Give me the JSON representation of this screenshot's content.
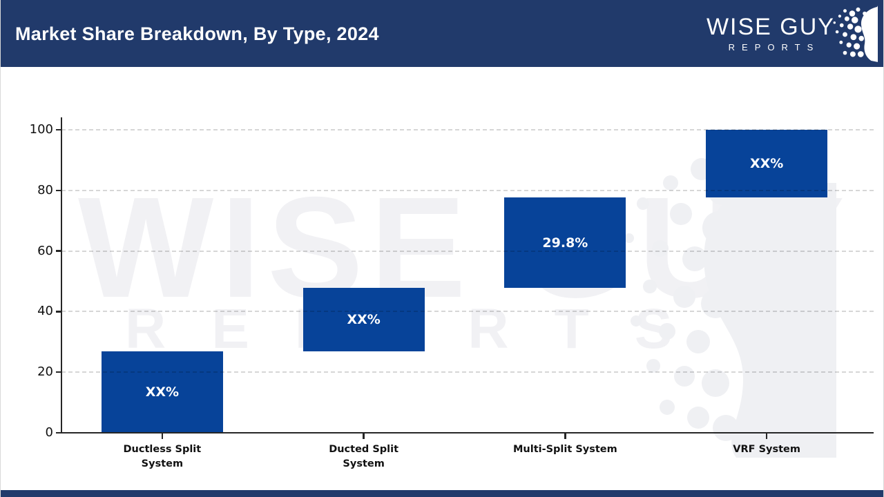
{
  "header": {
    "title": "Market Share Breakdown, By Type, 2024",
    "bg_color": "#213a6b",
    "logo": {
      "line1": "WISE GUY",
      "line2": "REPORTS"
    }
  },
  "watermark": {
    "line1": "WISE GUY",
    "line2": "REPORTS"
  },
  "chart_data": {
    "type": "bar",
    "subtype": "waterfall",
    "title": "Market Share Breakdown, By Type, 2024",
    "categories": [
      "Ductless Split System",
      "Ducted Split System",
      "Multi-Split System",
      "VRF System"
    ],
    "category_lines": [
      [
        "Ductless Split",
        "System"
      ],
      [
        "Ducted Split",
        "System"
      ],
      [
        "Multi-Split System"
      ],
      [
        "VRF System"
      ]
    ],
    "segments": [
      {
        "category": "Ductless Split System",
        "start": 0,
        "end": 26.9,
        "value": 26.9,
        "label": "XX%"
      },
      {
        "category": "Ducted Split System",
        "start": 26.9,
        "end": 47.8,
        "value": 20.9,
        "label": "XX%"
      },
      {
        "category": "Multi-Split System",
        "start": 47.8,
        "end": 77.6,
        "value": 29.8,
        "label": "29.8%"
      },
      {
        "category": "VRF System",
        "start": 77.6,
        "end": 100,
        "value": 22.4,
        "label": "XX%"
      }
    ],
    "yticks": [
      0,
      20,
      40,
      60,
      80,
      100
    ],
    "ylim": [
      0,
      100
    ],
    "xlabel": "",
    "ylabel": "",
    "bar_color": "#074399",
    "grid": "dashed horizontal",
    "legend": "none"
  },
  "footer": {
    "bg_color": "#213a6b"
  }
}
